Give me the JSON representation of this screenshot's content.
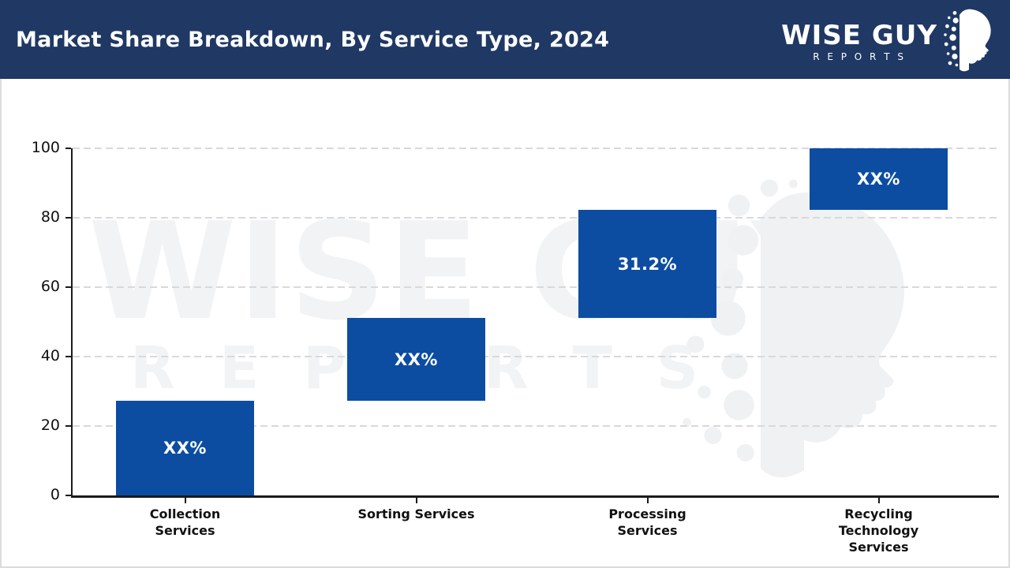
{
  "header": {
    "title": "Market Share Breakdown, By Service Type, 2024",
    "bg_color": "#1f3864",
    "logo": {
      "line1": "WISE GUY",
      "line2": "R E P O R T S",
      "icon": "dotted-head-profile"
    }
  },
  "watermark": {
    "line1": "WISE GUY",
    "line2": "R E P O R T S",
    "icon": "dotted-head-profile",
    "color": "#f2f3f4"
  },
  "chart_data": {
    "type": "bar",
    "subtype": "waterfall",
    "title": "Market Share Breakdown, By Service Type, 2024",
    "categories": [
      "Collection\nServices",
      "Sorting Services",
      "Processing\nServices",
      "Recycling\nTechnology\nServices"
    ],
    "bars": [
      {
        "category": "Collection Services",
        "start": 0,
        "end": 27.3,
        "value_label": "XX%"
      },
      {
        "category": "Sorting Services",
        "start": 27.3,
        "end": 51.1,
        "value_label": "XX%"
      },
      {
        "category": "Processing Services",
        "start": 51.1,
        "end": 82.3,
        "value_label": "31.2%"
      },
      {
        "category": "Recycling Technology Services",
        "start": 82.3,
        "end": 100,
        "value_label": "XX%"
      }
    ],
    "y_ticks": [
      0,
      20,
      40,
      60,
      80,
      100
    ],
    "ylim": [
      0,
      100
    ],
    "xlabel": "",
    "ylabel": "",
    "legend": "none",
    "grid": "horizontal-dashed",
    "bar_color": "#0c4da2",
    "gridline_color": "#d9d9d9",
    "axis_color": "#1a1a1a",
    "value_label_color": "#ffffff"
  }
}
